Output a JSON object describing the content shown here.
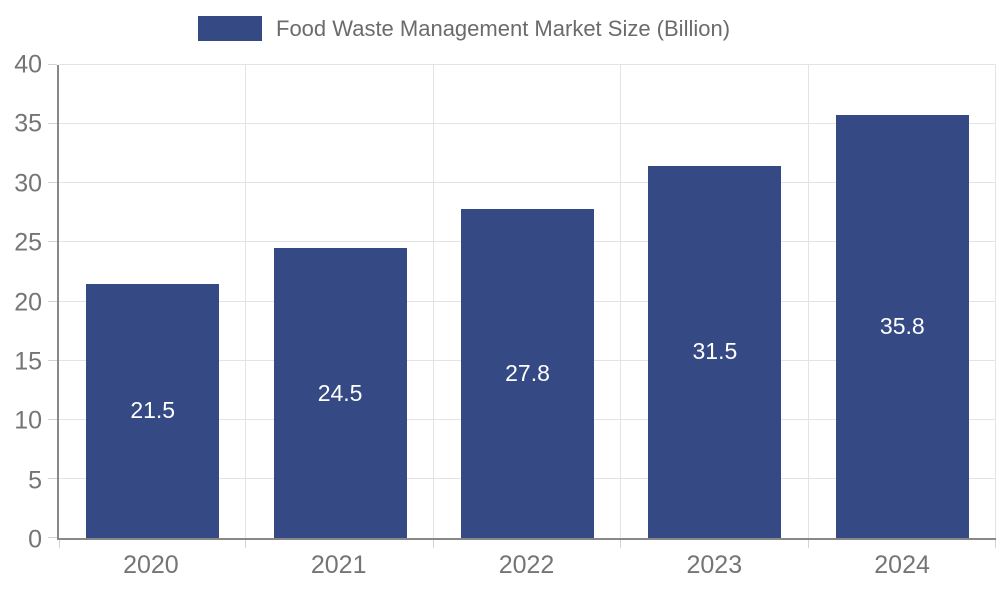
{
  "chart_data": {
    "type": "bar",
    "title": "Food Waste Management Market Size (Billion)",
    "legend": [
      "Food Waste Management Market Size (Billion)"
    ],
    "legend_position": "top",
    "categories": [
      "2020",
      "2021",
      "2022",
      "2023",
      "2024"
    ],
    "values": [
      21.5,
      24.5,
      27.8,
      31.5,
      35.8
    ],
    "value_labels": [
      "21.5",
      "24.5",
      "27.8",
      "31.5",
      "35.8"
    ],
    "xlabel": "",
    "ylabel": "",
    "ylim": [
      0,
      40
    ],
    "yticks": [
      0,
      5,
      10,
      15,
      20,
      25,
      30,
      35,
      40
    ],
    "grid": true,
    "bar_width_fraction": 0.71
  },
  "colors": {
    "bar": "#354a85",
    "grid": "#e3e3e3",
    "tick": "#cfd2dd",
    "axis": "#888888",
    "tick_label": "#757575",
    "legend_text": "#6b6b6b",
    "value_label": "#ffffff",
    "background": "#ffffff"
  }
}
